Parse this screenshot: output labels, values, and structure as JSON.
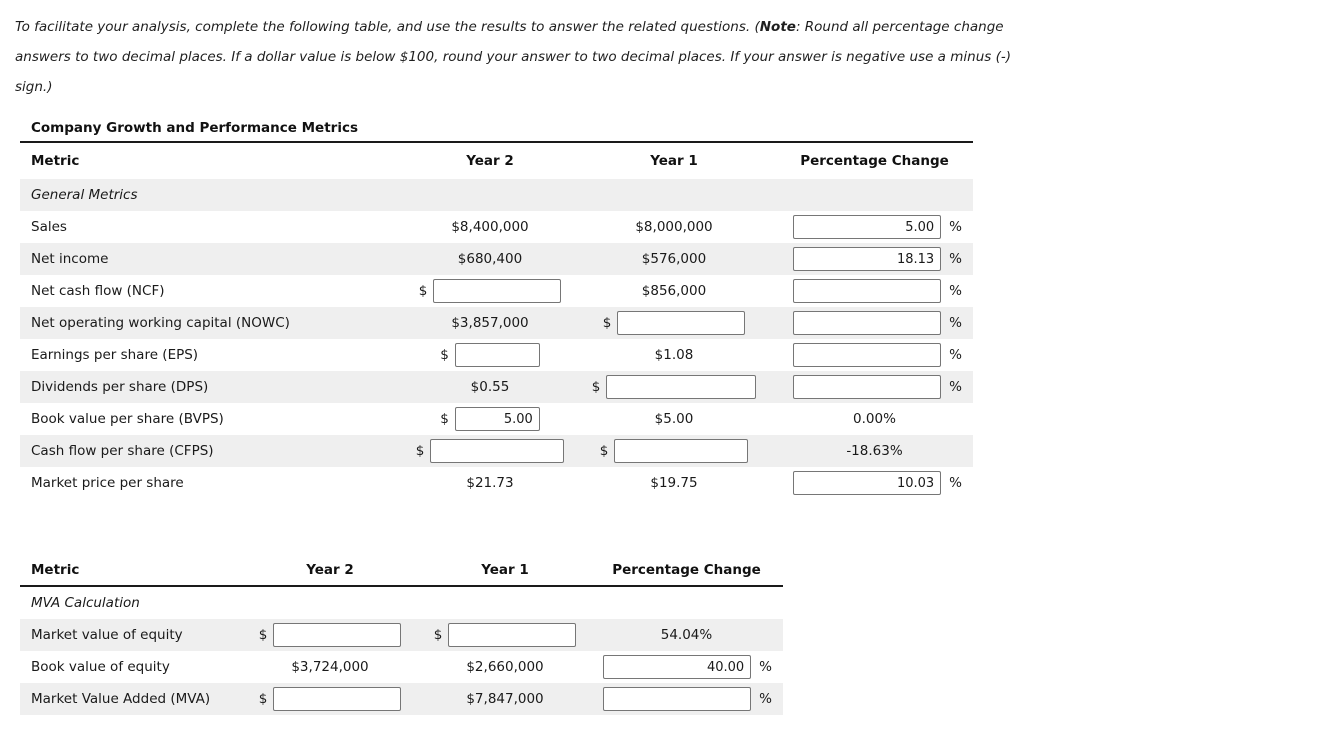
{
  "instructions": {
    "line1_pre": "To facilitate your analysis, complete the following table, and use the results to answer the related questions. (",
    "note_word": "Note",
    "line1_post": ": Round all percentage change",
    "line2": "answers to two decimal places. If a dollar value is below $100, round your answer to two decimal places. If your answer is negative use a minus (-)",
    "line3": "sign.)"
  },
  "symbols": {
    "dollar": "$",
    "percent": "%"
  },
  "colors": {
    "stripe": "#efefef",
    "rule": "#1a1a1a",
    "input_border": "#767676"
  },
  "table1": {
    "title": "Company Growth and Performance Metrics",
    "headers": {
      "metric": "Metric",
      "year2": "Year 2",
      "year1": "Year 1",
      "pct": "Percentage Change"
    },
    "section_label": "General Metrics",
    "rows": [
      {
        "metric": "Sales",
        "year2_text": "$8,400,000",
        "year1_text": "$8,000,000",
        "pct_input_value": "5.00"
      },
      {
        "metric": "Net income",
        "year2_text": "$680,400",
        "year1_text": "$576,000",
        "pct_input_value": "18.13"
      },
      {
        "metric": "Net cash flow (NCF)",
        "year2_input_value": "",
        "year1_text": "$856,000",
        "pct_input_value": ""
      },
      {
        "metric": "Net operating working capital (NOWC)",
        "year2_text": "$3,857,000",
        "year1_input_value": "",
        "pct_input_value": ""
      },
      {
        "metric": "Earnings per share (EPS)",
        "year2_input_value": "",
        "year1_text": "$1.08",
        "pct_input_value": ""
      },
      {
        "metric": "Dividends per share (DPS)",
        "year2_text": "$0.55",
        "year1_input_value": "",
        "pct_input_value": ""
      },
      {
        "metric": "Book value per share (BVPS)",
        "year2_input_value": "5.00",
        "year1_text": "$5.00",
        "pct_text": "0.00%"
      },
      {
        "metric": "Cash flow per share (CFPS)",
        "year2_input_value": "",
        "year1_input_value": "",
        "pct_text": "-18.63%"
      },
      {
        "metric": "Market price per share",
        "year2_text": "$21.73",
        "year1_text": "$19.75",
        "pct_input_value": "10.03"
      }
    ]
  },
  "table2": {
    "headers": {
      "metric": "Metric",
      "year2": "Year 2",
      "year1": "Year 1",
      "pct": "Percentage Change"
    },
    "section_label": "MVA Calculation",
    "rows": [
      {
        "metric": "Market value of equity",
        "year2_input_value": "",
        "year1_input_value": "",
        "pct_text": "54.04%"
      },
      {
        "metric": "Book value of equity",
        "year2_text": "$3,724,000",
        "year1_text": "$2,660,000",
        "pct_input_value": "40.00"
      },
      {
        "metric": "Market Value Added (MVA)",
        "year2_input_value": "",
        "year1_text": "$7,847,000",
        "pct_input_value": ""
      }
    ]
  }
}
